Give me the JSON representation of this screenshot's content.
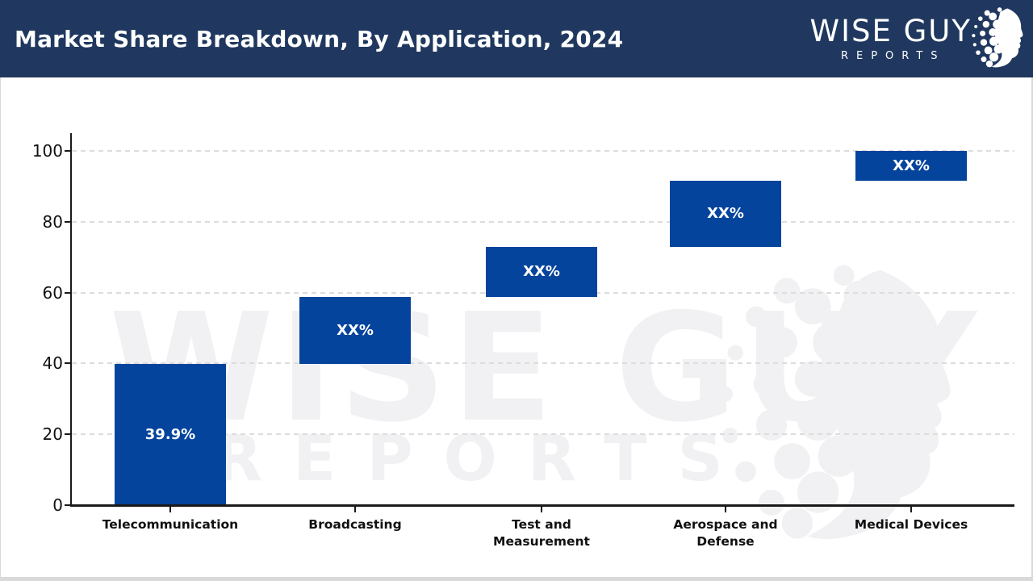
{
  "header": {
    "title": "Market Share Breakdown, By Application, 2024",
    "logo": {
      "line1": "WISE GUY",
      "line2": "REPORTS"
    }
  },
  "watermark": {
    "line1": "WISE GUY",
    "line2": "REPORTS"
  },
  "chart_data": {
    "type": "bar",
    "subtype": "waterfall",
    "title": "Market Share Breakdown, By Application, 2024",
    "categories": [
      "Telecommunication",
      "Broadcasting",
      "Test and Measurement",
      "Aerospace and Defense",
      "Medical Devices"
    ],
    "segments": [
      {
        "category": "Telecommunication",
        "start": 0,
        "end": 39.9,
        "label": "39.9%"
      },
      {
        "category": "Broadcasting",
        "start": 39.9,
        "end": 58.8,
        "label": "XX%"
      },
      {
        "category": "Test and Measurement",
        "start": 58.8,
        "end": 72.9,
        "label": "XX%"
      },
      {
        "category": "Aerospace and Defense",
        "start": 72.9,
        "end": 91.6,
        "label": "XX%"
      },
      {
        "category": "Medical Devices",
        "start": 91.6,
        "end": 100,
        "label": "XX%"
      }
    ],
    "y_ticks": [
      0,
      20,
      40,
      60,
      80,
      100
    ],
    "ylim": [
      0,
      105
    ],
    "xlabel": "",
    "ylabel": "",
    "grid": true,
    "legend": false,
    "bar_color": "#05449C"
  },
  "colors": {
    "header_bg": "#20385F",
    "bar": "#05449C",
    "grid": "#dcdcdc",
    "watermark": "#f1f1f3",
    "bar_label_text": "#ffffff",
    "axis": "#1a1a1a"
  }
}
